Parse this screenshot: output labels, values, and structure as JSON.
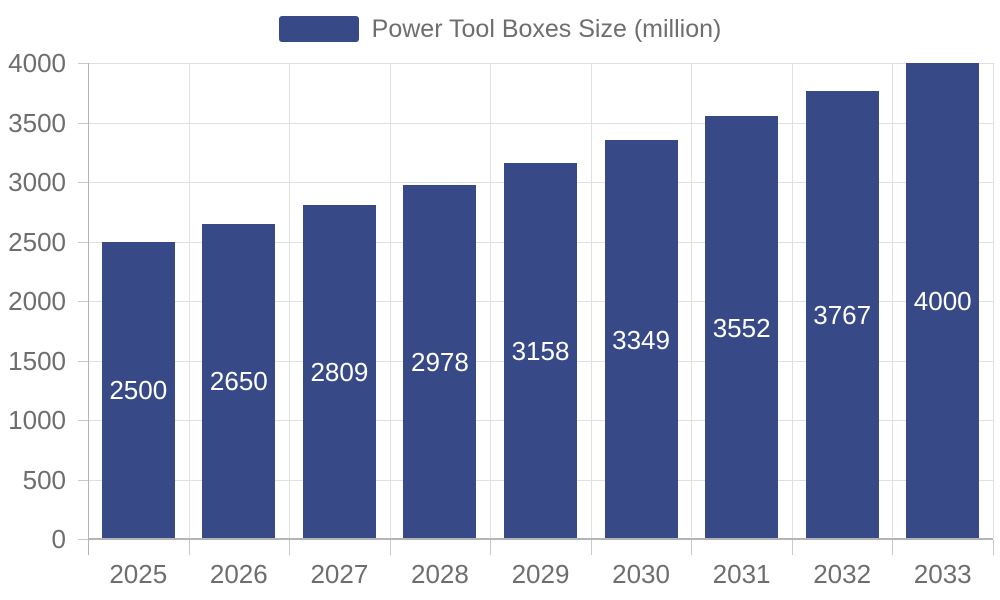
{
  "chart_data": {
    "type": "bar",
    "title": "Power Tool Boxes Size (million)",
    "legend": {
      "label": "Power Tool Boxes Size (million)",
      "position": "top-center"
    },
    "categories": [
      "2025",
      "2026",
      "2027",
      "2028",
      "2029",
      "2030",
      "2031",
      "2032",
      "2033"
    ],
    "series": [
      {
        "name": "Power Tool Boxes Size (million)",
        "values": [
          2500,
          2650,
          2809,
          2978,
          3158,
          3349,
          3552,
          3767,
          4000
        ]
      }
    ],
    "xlabel": "",
    "ylabel": "",
    "ylim": [
      0,
      4000
    ],
    "yticks": [
      0,
      500,
      1000,
      1500,
      2000,
      2500,
      3000,
      3500,
      4000
    ],
    "grid": true,
    "bar_labels_visible": true,
    "colors": {
      "bar": "#374a87",
      "bar_label": "#ffffff",
      "axis_text": "#6e6e6e",
      "grid_line": "#e0e0e0",
      "axis_line": "#b4b4b4",
      "tick_line": "#c9c9c9",
      "background": "#ffffff"
    }
  }
}
